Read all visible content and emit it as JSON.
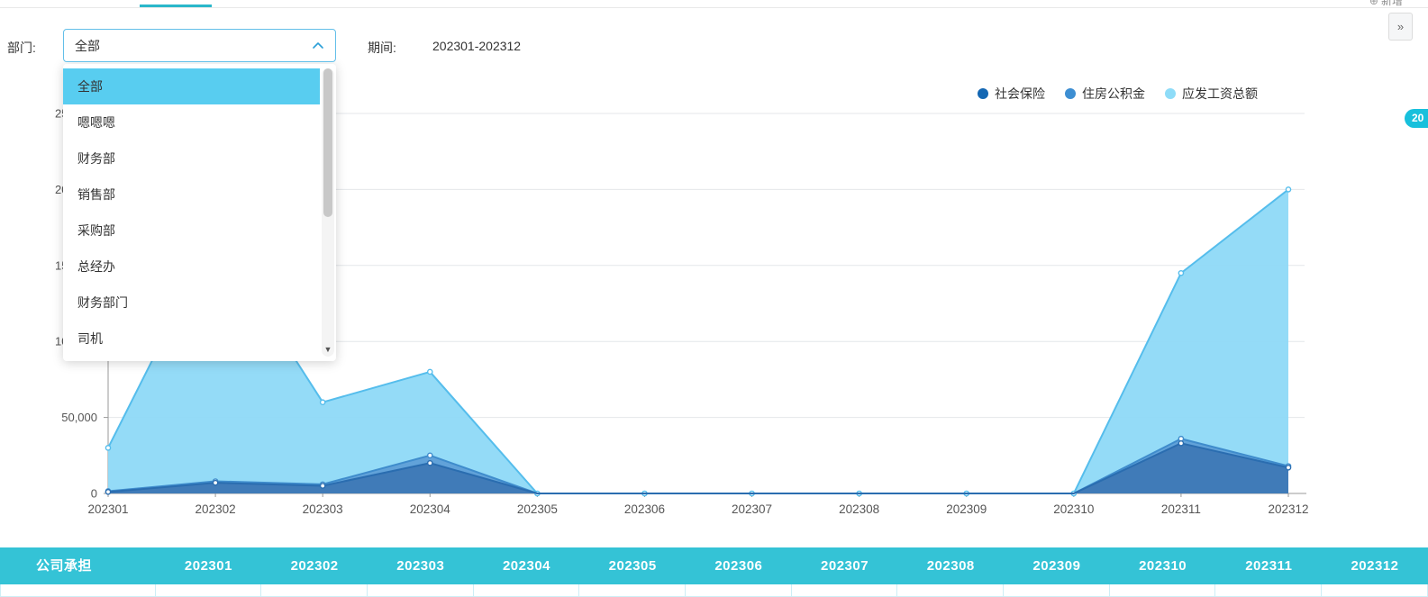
{
  "top_bar": {
    "action_label": "新增",
    "action_icon": "plus-circle-icon"
  },
  "side": {
    "expand_icon": "»",
    "edge_badge": "20"
  },
  "filters": {
    "department_label": "部门:",
    "department_value": "全部",
    "period_label": "期间:",
    "period_value": "202301-202312"
  },
  "dropdown": {
    "items": [
      {
        "label": "全部",
        "selected": true
      },
      {
        "label": "嗯嗯嗯",
        "selected": false
      },
      {
        "label": "财务部",
        "selected": false
      },
      {
        "label": "销售部",
        "selected": false
      },
      {
        "label": "采购部",
        "selected": false
      },
      {
        "label": "总经办",
        "selected": false
      },
      {
        "label": "财务部门",
        "selected": false
      },
      {
        "label": "司机",
        "selected": false
      }
    ]
  },
  "legend": [
    {
      "label": "社会保险",
      "color": "#1467b3"
    },
    {
      "label": "住房公积金",
      "color": "#3d8ed2"
    },
    {
      "label": "应发工资总额",
      "color": "#8edcf8"
    }
  ],
  "chart_data": {
    "type": "area",
    "title": "",
    "xlabel": "",
    "ylabel": "",
    "categories": [
      "202301",
      "202302",
      "202303",
      "202304",
      "202305",
      "202306",
      "202307",
      "202308",
      "202309",
      "202310",
      "202311",
      "202312"
    ],
    "series": [
      {
        "name": "社会保险",
        "fill": "#3e79b6",
        "line": "#2a6db0",
        "opacity": 0.95,
        "values": [
          1000,
          7000,
          5000,
          20000,
          0,
          0,
          0,
          0,
          0,
          0,
          33000,
          17000
        ]
      },
      {
        "name": "住房公积金",
        "fill": "#5b9bd5",
        "line": "#3f8ccc",
        "opacity": 0.9,
        "values": [
          1500,
          8000,
          6000,
          25000,
          0,
          0,
          0,
          0,
          0,
          0,
          36000,
          18000
        ]
      },
      {
        "name": "应发工资总额",
        "fill": "#8ed9f7",
        "line": "#55bdec",
        "opacity": 0.95,
        "values": [
          30000,
          170000,
          60000,
          80000,
          0,
          0,
          0,
          0,
          0,
          0,
          145000,
          200000
        ]
      }
    ],
    "ylim": [
      0,
      250000
    ],
    "yticks": [
      "0",
      "50,000",
      "100,000",
      "150,000",
      "200,000",
      "250,000"
    ],
    "grid": true,
    "legend_position": "top-right"
  },
  "table": {
    "header": [
      "公司承担",
      "202301",
      "202302",
      "202303",
      "202304",
      "202305",
      "202306",
      "202307",
      "202308",
      "202309",
      "202310",
      "202311",
      "202312"
    ]
  }
}
